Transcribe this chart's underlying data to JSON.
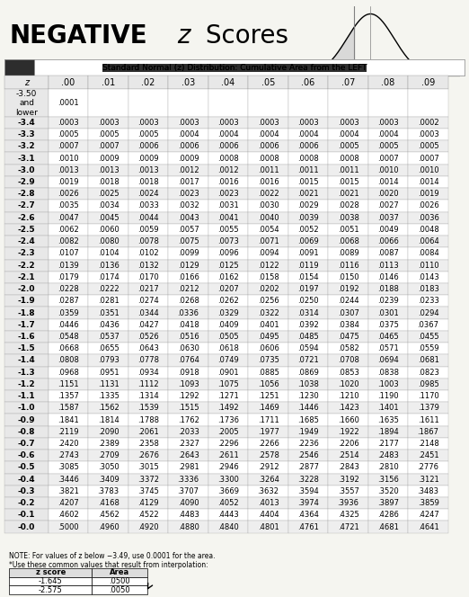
{
  "title_bold": "NEGATIVE",
  "title_italic": " z",
  "title_rest": " Scores",
  "subtitle": "Standard Normal (z) Distribution: Cumulative Area from the LEFT",
  "col_headers": [
    "z",
    ".00",
    ".01",
    ".02",
    ".03",
    ".04",
    ".05",
    ".06",
    ".07",
    ".08",
    ".09"
  ],
  "rows": [
    [
      "-3.50\nand\nlower",
      ".0001",
      "",
      "",
      "",
      "",
      "",
      "",
      "",
      "",
      ""
    ],
    [
      "-3.4",
      ".0003",
      ".0003",
      ".0003",
      ".0003",
      ".0003",
      ".0003",
      ".0003",
      ".0003",
      ".0003",
      ".0002"
    ],
    [
      "-3.3",
      ".0005",
      ".0005",
      ".0005",
      ".0004",
      ".0004",
      ".0004",
      ".0004",
      ".0004",
      ".0004",
      ".0003"
    ],
    [
      "-3.2",
      ".0007",
      ".0007",
      ".0006",
      ".0006",
      ".0006",
      ".0006",
      ".0006",
      ".0005",
      ".0005",
      ".0005"
    ],
    [
      "-3.1",
      ".0010",
      ".0009",
      ".0009",
      ".0009",
      ".0008",
      ".0008",
      ".0008",
      ".0008",
      ".0007",
      ".0007"
    ],
    [
      "-3.0",
      ".0013",
      ".0013",
      ".0013",
      ".0012",
      ".0012",
      ".0011",
      ".0011",
      ".0011",
      ".0010",
      ".0010"
    ],
    [
      "-2.9",
      ".0019",
      ".0018",
      ".0018",
      ".0017",
      ".0016",
      ".0016",
      ".0015",
      ".0015",
      ".0014",
      ".0014"
    ],
    [
      "-2.8",
      ".0026",
      ".0025",
      ".0024",
      ".0023",
      ".0023",
      ".0022",
      ".0021",
      ".0021",
      ".0020",
      ".0019"
    ],
    [
      "-2.7",
      ".0035",
      ".0034",
      ".0033",
      ".0032",
      ".0031",
      ".0030",
      ".0029",
      ".0028",
      ".0027",
      ".0026"
    ],
    [
      "-2.6",
      ".0047",
      ".0045",
      ".0044",
      ".0043",
      ".0041",
      ".0040",
      ".0039",
      ".0038",
      ".0037",
      ".0036"
    ],
    [
      "-2.5",
      ".0062",
      ".0060",
      ".0059",
      ".0057",
      ".0055",
      ".0054",
      ".0052",
      ".0051",
      ".0049",
      ".0048"
    ],
    [
      "-2.4",
      ".0082",
      ".0080",
      ".0078",
      ".0075",
      ".0073",
      ".0071",
      ".0069",
      ".0068",
      ".0066",
      ".0064"
    ],
    [
      "-2.3",
      ".0107",
      ".0104",
      ".0102",
      ".0099",
      ".0096",
      ".0094",
      ".0091",
      ".0089",
      ".0087",
      ".0084"
    ],
    [
      "-2.2",
      ".0139",
      ".0136",
      ".0132",
      ".0129",
      ".0125",
      ".0122",
      ".0119",
      ".0116",
      ".0113",
      ".0110"
    ],
    [
      "-2.1",
      ".0179",
      ".0174",
      ".0170",
      ".0166",
      ".0162",
      ".0158",
      ".0154",
      ".0150",
      ".0146",
      ".0143"
    ],
    [
      "-2.0",
      ".0228",
      ".0222",
      ".0217",
      ".0212",
      ".0207",
      ".0202",
      ".0197",
      ".0192",
      ".0188",
      ".0183"
    ],
    [
      "-1.9",
      ".0287",
      ".0281",
      ".0274",
      ".0268",
      ".0262",
      ".0256",
      ".0250",
      ".0244",
      ".0239",
      ".0233"
    ],
    [
      "-1.8",
      ".0359",
      ".0351",
      ".0344",
      ".0336",
      ".0329",
      ".0322",
      ".0314",
      ".0307",
      ".0301",
      ".0294"
    ],
    [
      "-1.7",
      ".0446",
      ".0436",
      ".0427",
      ".0418",
      ".0409",
      ".0401",
      ".0392",
      ".0384",
      ".0375",
      ".0367"
    ],
    [
      "-1.6",
      ".0548",
      ".0537",
      ".0526",
      ".0516",
      ".0505",
      ".0495",
      ".0485",
      ".0475",
      ".0465",
      ".0455"
    ],
    [
      "-1.5",
      ".0668",
      ".0655",
      ".0643",
      ".0630",
      ".0618",
      ".0606",
      ".0594",
      ".0582",
      ".0571",
      ".0559"
    ],
    [
      "-1.4",
      ".0808",
      ".0793",
      ".0778",
      ".0764",
      ".0749",
      ".0735",
      ".0721",
      ".0708",
      ".0694",
      ".0681"
    ],
    [
      "-1.3",
      ".0968",
      ".0951",
      ".0934",
      ".0918",
      ".0901",
      ".0885",
      ".0869",
      ".0853",
      ".0838",
      ".0823"
    ],
    [
      "-1.2",
      ".1151",
      ".1131",
      ".1112",
      ".1093",
      ".1075",
      ".1056",
      ".1038",
      ".1020",
      ".1003",
      ".0985"
    ],
    [
      "-1.1",
      ".1357",
      ".1335",
      ".1314",
      ".1292",
      ".1271",
      ".1251",
      ".1230",
      ".1210",
      ".1190",
      ".1170"
    ],
    [
      "-1.0",
      ".1587",
      ".1562",
      ".1539",
      ".1515",
      ".1492",
      ".1469",
      ".1446",
      ".1423",
      ".1401",
      ".1379"
    ],
    [
      "-0.9",
      ".1841",
      ".1814",
      ".1788",
      ".1762",
      ".1736",
      ".1711",
      ".1685",
      ".1660",
      ".1635",
      ".1611"
    ],
    [
      "-0.8",
      ".2119",
      ".2090",
      ".2061",
      ".2033",
      ".2005",
      ".1977",
      ".1949",
      ".1922",
      ".1894",
      ".1867"
    ],
    [
      "-0.7",
      ".2420",
      ".2389",
      ".2358",
      ".2327",
      ".2296",
      ".2266",
      ".2236",
      ".2206",
      ".2177",
      ".2148"
    ],
    [
      "-0.6",
      ".2743",
      ".2709",
      ".2676",
      ".2643",
      ".2611",
      ".2578",
      ".2546",
      ".2514",
      ".2483",
      ".2451"
    ],
    [
      "-0.5",
      ".3085",
      ".3050",
      ".3015",
      ".2981",
      ".2946",
      ".2912",
      ".2877",
      ".2843",
      ".2810",
      ".2776"
    ],
    [
      "-0.4",
      ".3446",
      ".3409",
      ".3372",
      ".3336",
      ".3300",
      ".3264",
      ".3228",
      ".3192",
      ".3156",
      ".3121"
    ],
    [
      "-0.3",
      ".3821",
      ".3783",
      ".3745",
      ".3707",
      ".3669",
      ".3632",
      ".3594",
      ".3557",
      ".3520",
      ".3483"
    ],
    [
      "-0.2",
      ".4207",
      ".4168",
      ".4129",
      ".4090",
      ".4052",
      ".4013",
      ".3974",
      ".3936",
      ".3897",
      ".3859"
    ],
    [
      "-0.1",
      ".4602",
      ".4562",
      ".4522",
      ".4483",
      ".4443",
      ".4404",
      ".4364",
      ".4325",
      ".4286",
      ".4247"
    ],
    [
      "-0.0",
      ".5000",
      ".4960",
      ".4920",
      ".4880",
      ".4840",
      ".4801",
      ".4761",
      ".4721",
      ".4681",
      ".4641"
    ]
  ],
  "note_text": "NOTE: For values of z below −3.49, use 0.0001 for the area.\n*Use these common values that result from interpolation:",
  "bottom_table_headers": [
    "z score",
    "Area"
  ],
  "bottom_table_rows": [
    [
      "-1.645",
      ".0500"
    ],
    [
      "-2.575",
      ".0050"
    ]
  ],
  "bg_color": "#f5f5f0",
  "header_bg": "#2d2d2d",
  "header_fg": "#ffffff",
  "col_header_bg": "#e8e8e8",
  "row_shade1": "#ffffff",
  "row_shade2": "#eeeeee",
  "border_color": "#999999"
}
